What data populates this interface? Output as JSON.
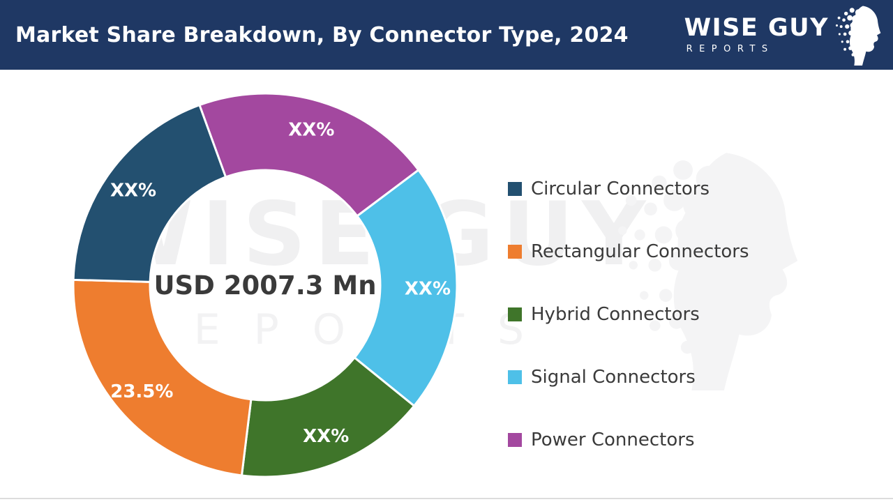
{
  "header": {
    "title": "Market Share Breakdown, By Connector Type, 2024",
    "logo": {
      "line1": "WISE GUY",
      "line2": "REPORTS"
    }
  },
  "chart_data": {
    "type": "pie",
    "subtype": "donut",
    "title": "Market Share Breakdown, By Connector Type, 2024",
    "center_label": "USD 2007.3 Mn",
    "start_angle_deg": -20,
    "legend_position": "right",
    "segments": [
      {
        "name": "Power Connectors",
        "display_label": "XX%",
        "value_pct_est": 20.3,
        "color": "#A3489F"
      },
      {
        "name": "Signal Connectors",
        "display_label": "XX%",
        "value_pct_est": 21.1,
        "color": "#4EC0E8"
      },
      {
        "name": "Hybrid Connectors",
        "display_label": "XX%",
        "value_pct_est": 16.1,
        "color": "#3F752A"
      },
      {
        "name": "Rectangular Connectors",
        "display_label": "23.5%",
        "value_pct_est": 23.5,
        "color": "#EE7D2F"
      },
      {
        "name": "Circular Connectors",
        "display_label": "XX%",
        "value_pct_est": 19.0,
        "color": "#235070"
      }
    ]
  },
  "legend": {
    "items": [
      {
        "label": "Circular Connectors",
        "color": "#235070"
      },
      {
        "label": "Rectangular Connectors",
        "color": "#EE7D2F"
      },
      {
        "label": "Hybrid Connectors",
        "color": "#3F752A"
      },
      {
        "label": "Signal Connectors",
        "color": "#4EC0E8"
      },
      {
        "label": "Power Connectors",
        "color": "#A3489F"
      }
    ]
  },
  "watermark": {
    "big_text": "WISE GUY",
    "sub_text": "REPORTS"
  },
  "colors": {
    "header_bg": "#1F3864",
    "text_dark": "#3A3A3A",
    "divider": "#DCDCDC",
    "watermark": "#F2F2F3"
  }
}
